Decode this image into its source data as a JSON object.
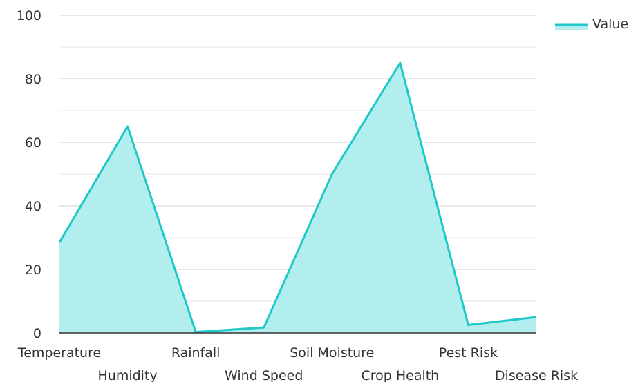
{
  "chart_data": {
    "type": "area",
    "categories": [
      "Temperature",
      "Humidity",
      "Rainfall",
      "Wind Speed",
      "Soil Moisture",
      "Crop Health",
      "Pest Risk",
      "Disease Risk"
    ],
    "series": [
      {
        "name": "Value",
        "values": [
          28.5,
          65,
          0.3,
          1.7,
          50,
          85,
          2.5,
          5
        ],
        "color": "#1ec8c8",
        "fill": "#b2eeee"
      }
    ],
    "ylim": [
      0,
      100
    ],
    "yticks": [
      0,
      20,
      40,
      60,
      80,
      100
    ],
    "title": "",
    "xlabel": "",
    "ylabel": "",
    "grid": true,
    "legend_position": "top-right"
  }
}
